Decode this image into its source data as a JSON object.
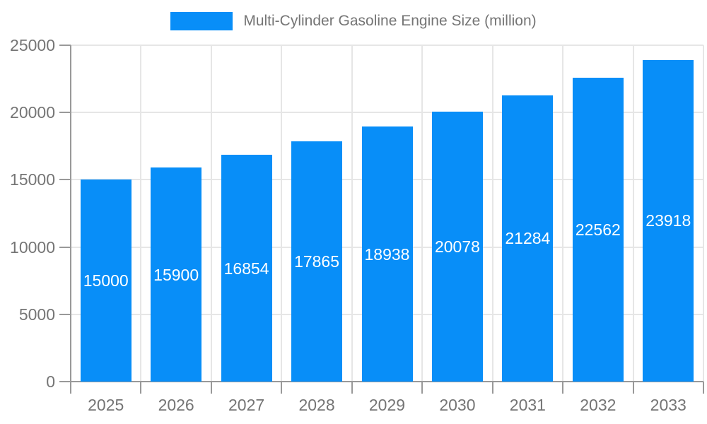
{
  "legend": {
    "label": "Multi-Cylinder Gasoline Engine Size (million)"
  },
  "chart_data": {
    "type": "bar",
    "title": "Multi-Cylinder Gasoline Engine Size (million)",
    "categories": [
      "2025",
      "2026",
      "2027",
      "2028",
      "2029",
      "2030",
      "2031",
      "2032",
      "2033"
    ],
    "values": [
      15000,
      15900,
      16854,
      17865,
      18938,
      20078,
      21284,
      22562,
      23918
    ],
    "xlabel": "",
    "ylabel": "",
    "ylim": [
      0,
      25000
    ],
    "y_ticks": [
      0,
      5000,
      10000,
      15000,
      20000,
      25000
    ],
    "grid": true,
    "legend_position": "top-center",
    "value_labels": "inside-center",
    "colors": {
      "bar": "#088EF8",
      "value_label": "#FFFFFF",
      "axis_line": "#999999",
      "gridline": "#E6E6E6",
      "tick_label": "#757575",
      "legend_text": "#757575",
      "background": "#FFFFFF"
    }
  }
}
